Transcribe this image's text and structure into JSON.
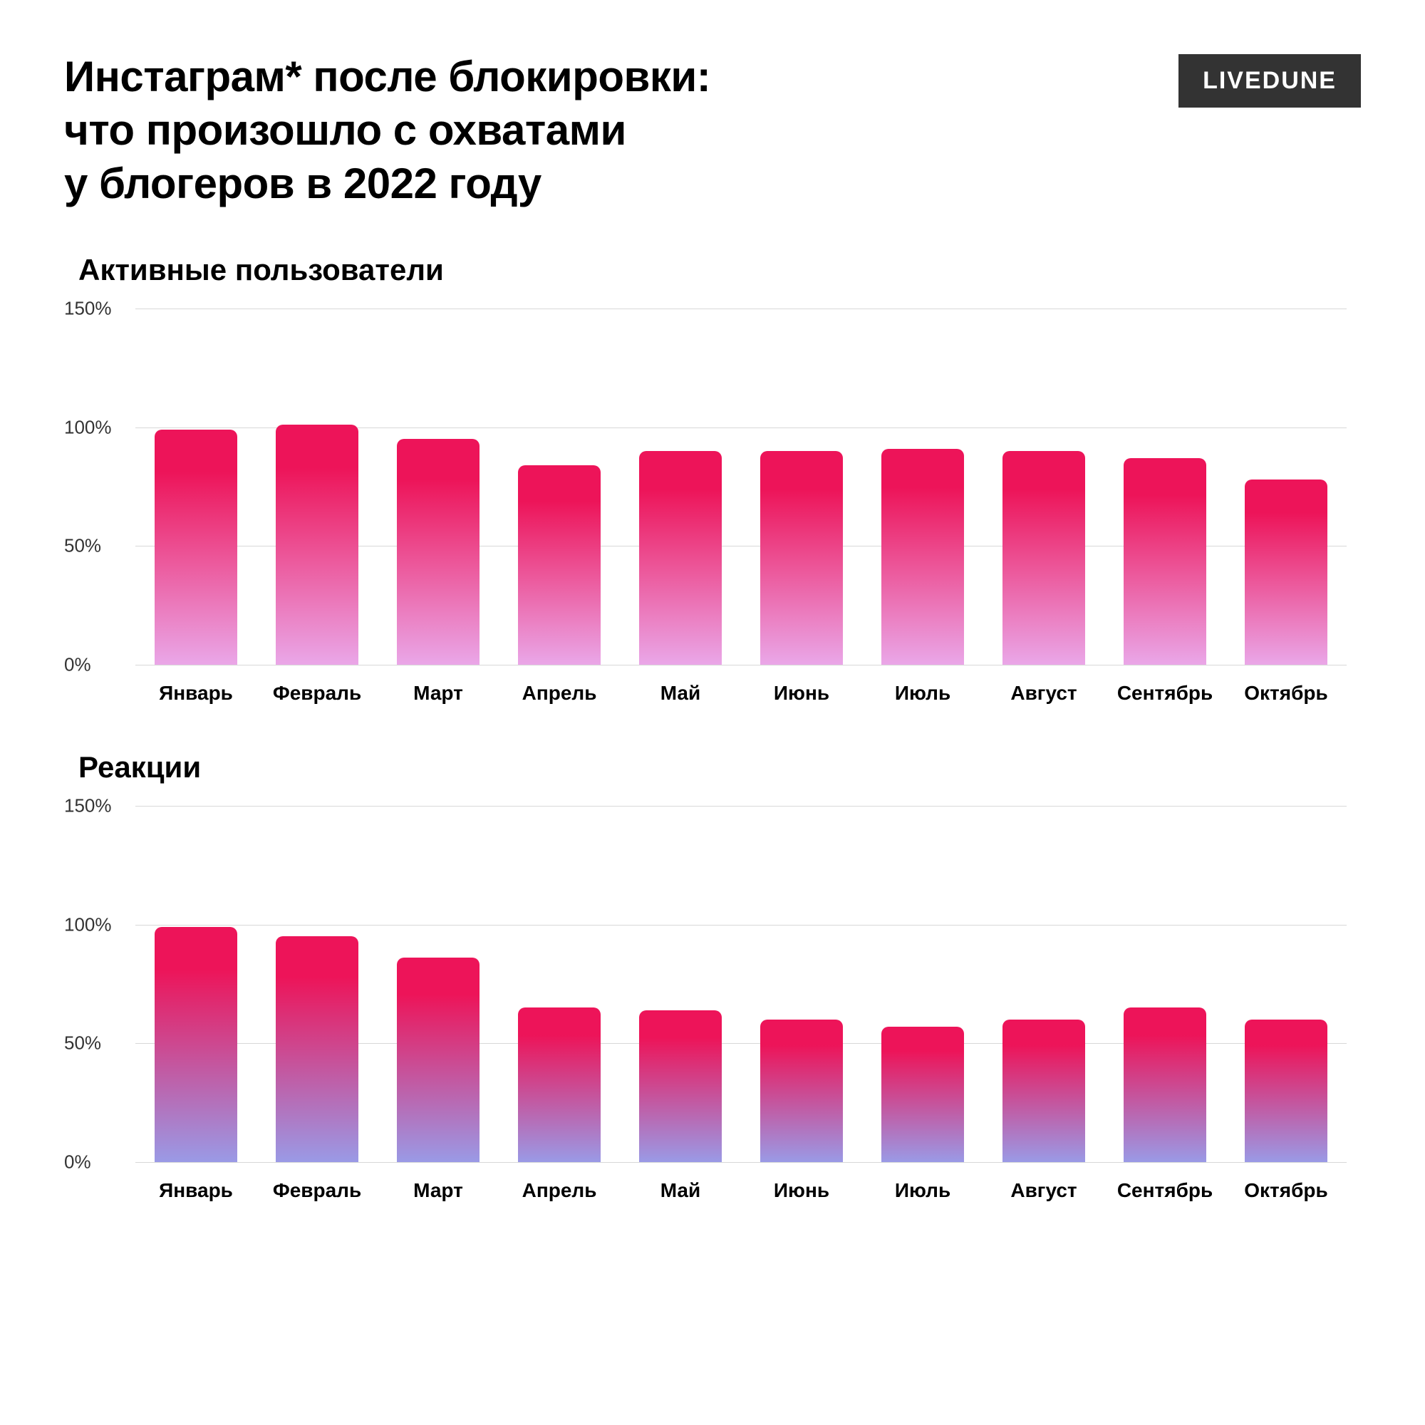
{
  "title_lines": [
    "Инстаграм* после блокировки:",
    "что произошло с охватами",
    "у блогеров в 2022 году"
  ],
  "brand": "LIVEDUNE",
  "brand_bg": "#333333",
  "brand_fg": "#ffffff",
  "background_color": "#ffffff",
  "text_color": "#000000",
  "grid_color": "#d8d8d8",
  "y_ticks": [
    "0%",
    "50%",
    "100%",
    "150%"
  ],
  "y_tick_values": [
    0,
    50,
    100,
    150
  ],
  "ylim": [
    0,
    150
  ],
  "categories": [
    "Январь",
    "Февраль",
    "Март",
    "Апрель",
    "Май",
    "Июнь",
    "Июль",
    "Август",
    "Сентябрь",
    "Октябрь"
  ],
  "charts": [
    {
      "title": "Активные пользователи",
      "type": "bar",
      "values": [
        99,
        101,
        95,
        84,
        90,
        90,
        91,
        90,
        87,
        78
      ],
      "bar_gradient_top": "#ed1459",
      "bar_gradient_bottom": "#eaa7e8",
      "bar_width": 0.68,
      "bar_radius": 10
    },
    {
      "title": "Реакции",
      "type": "bar",
      "values": [
        99,
        95,
        86,
        65,
        64,
        60,
        57,
        60,
        65,
        60
      ],
      "bar_gradient_top": "#ed1459",
      "bar_gradient_bottom": "#9a9ae6",
      "bar_width": 0.68,
      "bar_radius": 10
    }
  ],
  "title_fontsize": 60,
  "chart_title_fontsize": 42,
  "axis_label_fontsize": 28,
  "tick_fontsize": 26
}
